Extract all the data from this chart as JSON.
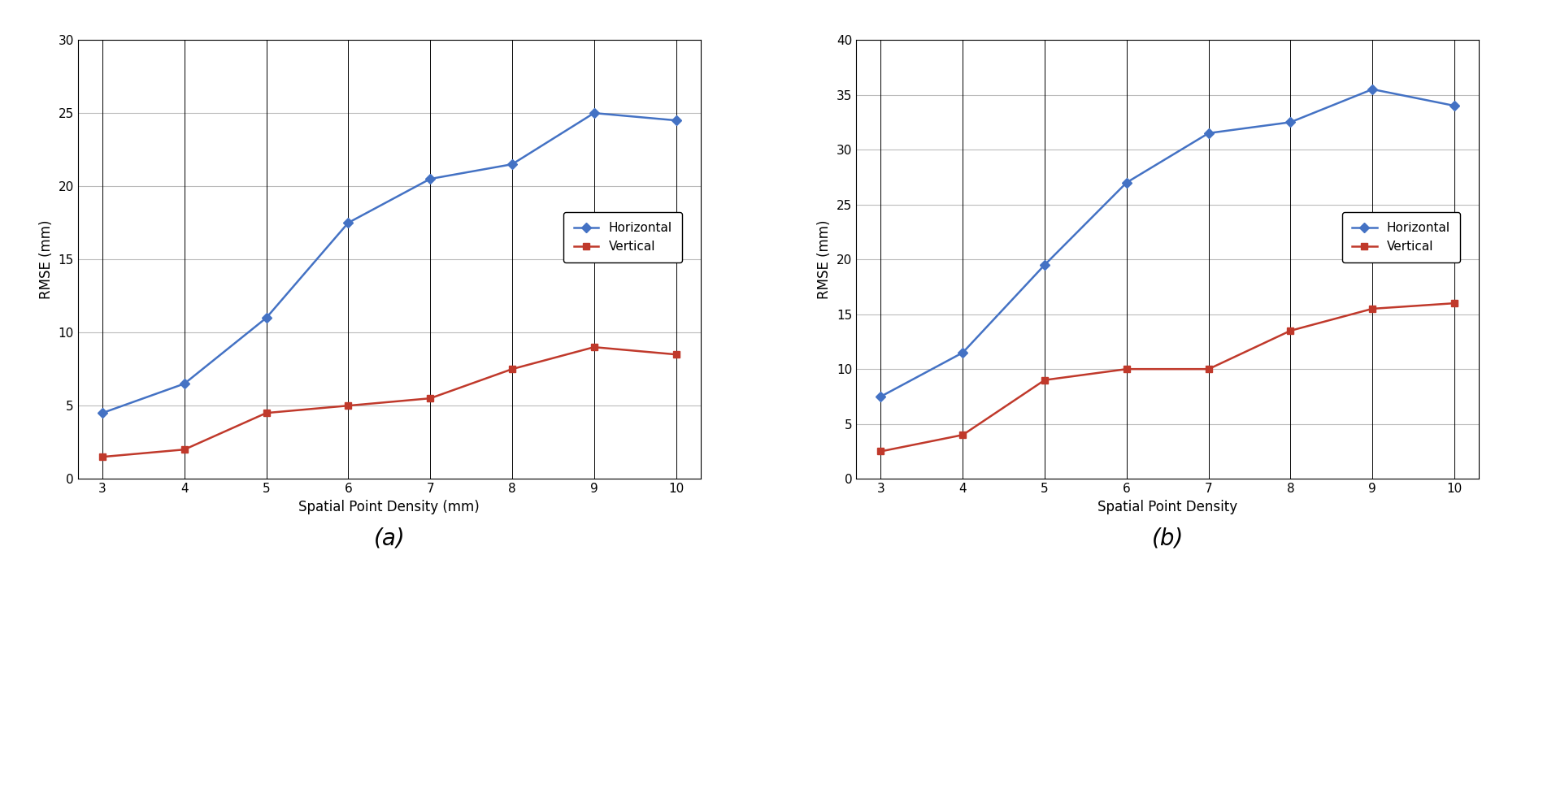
{
  "subplot_a": {
    "x": [
      3,
      4,
      5,
      6,
      7,
      8,
      9,
      10
    ],
    "horizontal": [
      4.5,
      6.5,
      11.0,
      17.5,
      20.5,
      21.5,
      25.0,
      24.5
    ],
    "vertical": [
      1.5,
      2.0,
      4.5,
      5.0,
      5.5,
      7.5,
      9.0,
      8.5
    ],
    "xlabel": "Spatial Point Density (mm)",
    "ylabel": "RMSE (mm)",
    "ylim": [
      0,
      30
    ],
    "yticks": [
      0,
      5,
      10,
      15,
      20,
      25,
      30
    ],
    "label": "(a)"
  },
  "subplot_b": {
    "x": [
      3,
      4,
      5,
      6,
      7,
      8,
      9,
      10
    ],
    "horizontal": [
      7.5,
      11.5,
      19.5,
      27.0,
      31.5,
      32.5,
      35.5,
      34.0
    ],
    "vertical": [
      2.5,
      4.0,
      9.0,
      10.0,
      10.0,
      13.5,
      15.5,
      16.0
    ],
    "xlabel": "Spatial Point Density",
    "ylabel": "RMSE (mm)",
    "ylim": [
      0,
      40
    ],
    "yticks": [
      0,
      5,
      10,
      15,
      20,
      25,
      30,
      35,
      40
    ],
    "label": "(b)"
  },
  "line_color_horizontal": "#4472C4",
  "line_color_vertical": "#C0392B",
  "marker_horizontal": "D",
  "marker_vertical": "s",
  "linewidth": 1.8,
  "markersize": 6,
  "legend_horizontal": "Horizontal",
  "legend_vertical": "Vertical",
  "background_color": "#FFFFFF",
  "hgrid_color": "#BBBBBB",
  "vgrid_color": "#000000",
  "label_fontsize": 12,
  "tick_fontsize": 11,
  "legend_fontsize": 11,
  "subplot_label_fontsize": 20
}
